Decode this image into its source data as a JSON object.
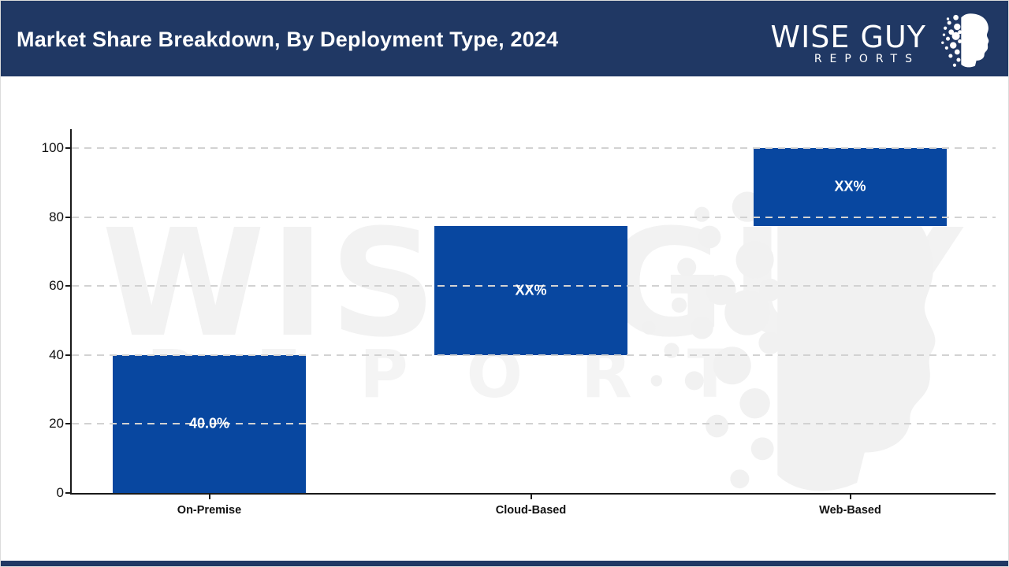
{
  "header": {
    "title": "Market Share Breakdown, By Deployment Type, 2024",
    "logo": {
      "line1": "WISE GUY",
      "line2": "REPORTS"
    }
  },
  "watermark": {
    "line1": "WISE GUY",
    "line2": "REPORTS"
  },
  "chart_data": {
    "type": "bar",
    "variant": "waterfall",
    "title": "Market Share Breakdown, By Deployment Type, 2024",
    "categories": [
      "On-Premise",
      "Cloud-Based",
      "Web-Based"
    ],
    "segments": [
      {
        "category": "On-Premise",
        "start": 0,
        "end": 40,
        "label": "40.0%"
      },
      {
        "category": "Cloud-Based",
        "start": 40,
        "end": 77.5,
        "label": "XX%"
      },
      {
        "category": "Web-Based",
        "start": 77.5,
        "end": 100,
        "label": "XX%"
      }
    ],
    "yticks": [
      0,
      20,
      40,
      60,
      80,
      100
    ],
    "ylim": [
      0,
      105
    ],
    "xlabel": "",
    "ylabel": "",
    "grid": "horizontal-dashed",
    "legend": "none",
    "bar_color": "#0847a0",
    "bar_label_color": "#ffffff",
    "axis_color": "#1a1a1a",
    "gridline_color": "#d2d2d2"
  },
  "colors": {
    "header_bg": "#203864",
    "footer_bg": "#203864",
    "background": "#ffffff",
    "watermark": "#f2f2f2"
  }
}
